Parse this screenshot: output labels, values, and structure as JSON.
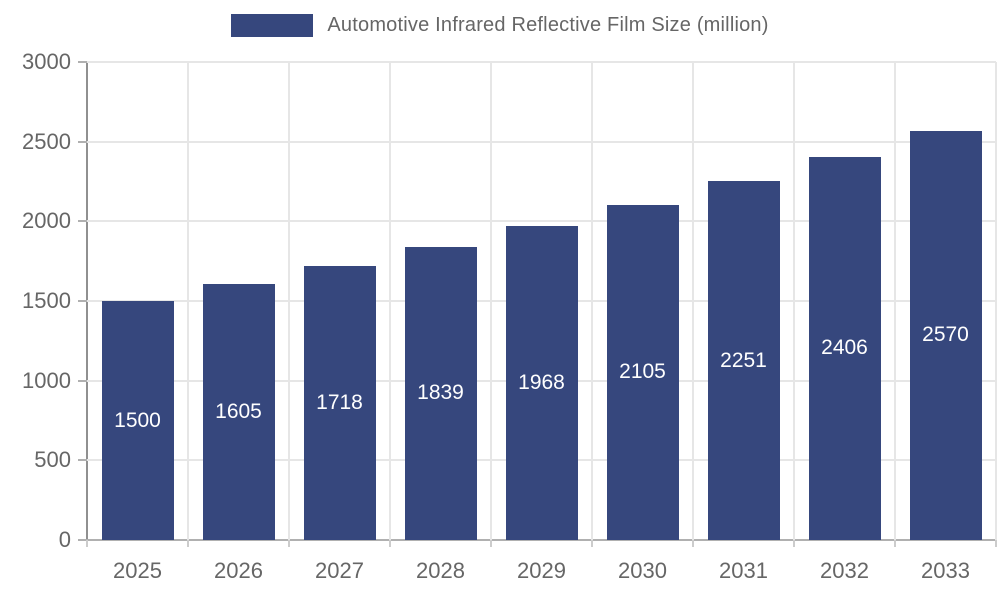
{
  "legend": {
    "label": "Automotive Infrared Reflective Film Size (million)",
    "swatch_color": "#36477d"
  },
  "chart_data": {
    "type": "bar",
    "title": "",
    "xlabel": "",
    "ylabel": "",
    "categories": [
      "2025",
      "2026",
      "2027",
      "2028",
      "2029",
      "2030",
      "2031",
      "2032",
      "2033"
    ],
    "series": [
      {
        "name": "Automotive Infrared Reflective Film Size (million)",
        "values": [
          1500,
          1605,
          1718,
          1839,
          1968,
          2105,
          2251,
          2406,
          2570
        ]
      }
    ],
    "value_labels_shown": true,
    "value_label_position": "center-of-bar",
    "ylim": [
      0,
      3000
    ],
    "yticks": [
      0,
      500,
      1000,
      1500,
      2000,
      2500,
      3000
    ],
    "grid": true,
    "legend_position": "top-center",
    "colors": {
      "bar": "#36477d",
      "value_label": "#ffffff",
      "axis_text": "#666666",
      "gridline": "#e6e6e6",
      "y_axis_line": "#909090",
      "x_axis_line": "#b0b0b0"
    }
  }
}
